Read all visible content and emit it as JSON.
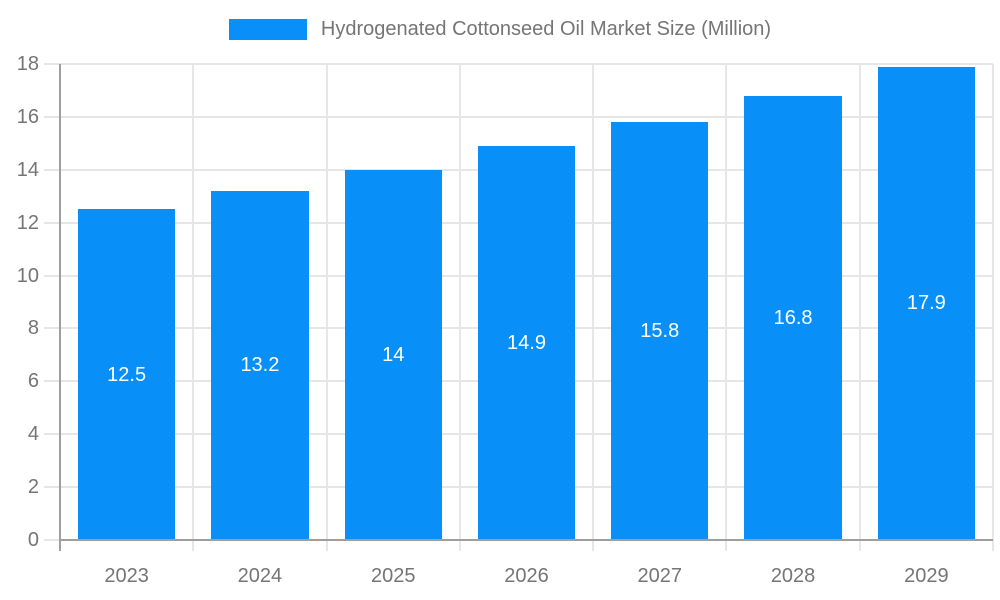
{
  "chart_data": {
    "type": "bar",
    "title": "Hydrogenated Cottonseed Oil Market Size (Million)",
    "legend_entries": [
      "Hydrogenated Cottonseed Oil Market Size (Million)"
    ],
    "legend_position": "top-center",
    "categories": [
      "2023",
      "2024",
      "2025",
      "2026",
      "2027",
      "2028",
      "2029"
    ],
    "values": [
      12.5,
      13.2,
      14,
      14.9,
      15.8,
      16.8,
      17.9
    ],
    "value_labels": [
      "12.5",
      "13.2",
      "14",
      "14.9",
      "15.8",
      "16.8",
      "17.9"
    ],
    "xlabel": "",
    "ylabel": "",
    "ylim": [
      0,
      18
    ],
    "ytick_step": 2,
    "ytick_labels": [
      "0",
      "2",
      "4",
      "6",
      "8",
      "10",
      "12",
      "14",
      "16",
      "18"
    ],
    "grid": true,
    "colors": {
      "bar": "#0890f8",
      "grid_line": "#e6e6e6",
      "axis_line": "#9e9e9e",
      "tick_text": "#757575",
      "value_label_text": "#ffffff",
      "background": "#ffffff"
    }
  }
}
